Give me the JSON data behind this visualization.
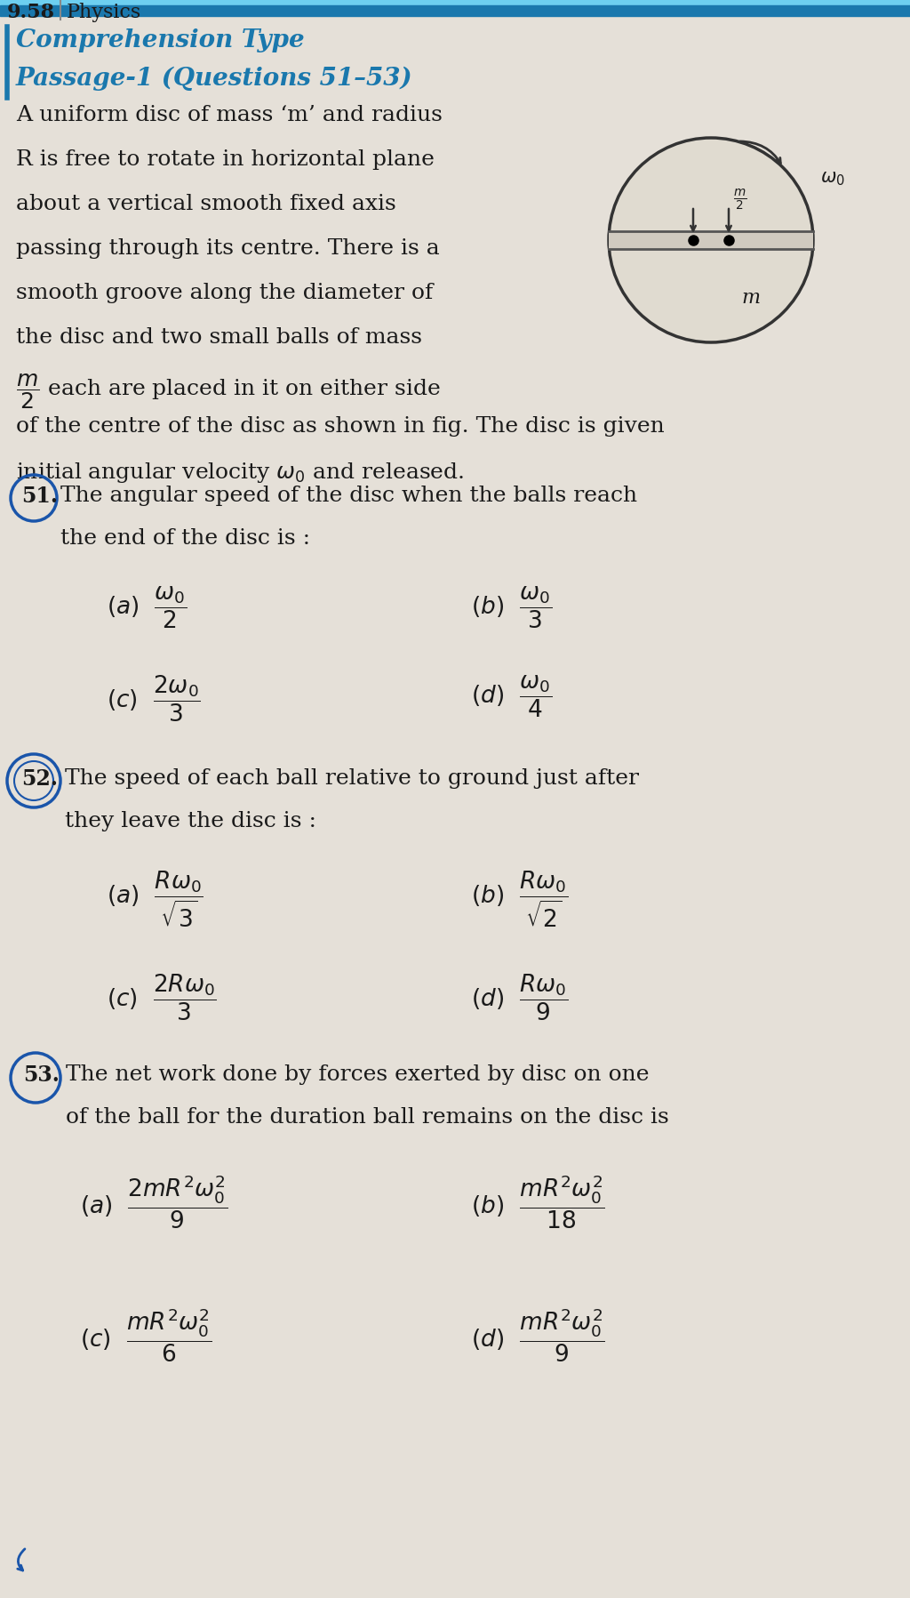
{
  "bg_color": "#e5e0d8",
  "blue_color": "#1a78ad",
  "text_color": "#1a1a1a",
  "circle_color": "#1a55aa",
  "header_line1_color": "#4db8e8",
  "header_line2_color": "#1a78ad",
  "fig_width": 10.24,
  "fig_height": 17.97,
  "dpi": 100,
  "passage_lines": [
    "A uniform disc of mass ‘m’ and radius",
    "R is free to rotate in horizontal plane",
    "about a vertical smooth fixed axis",
    "passing through its centre. There is a",
    "smooth groove along the diameter of",
    "the disc and two small balls of mass",
    "$\\dfrac{m}{2}$ each are placed in it on either side",
    "of the centre of the disc as shown in fig. The disc is given",
    "initial angular velocity $\\omega_0$ and released."
  ],
  "q51_line1": "The angular speed of the disc when the balls reach",
  "q51_line2": "the end of the disc is :",
  "q52_line1": "The speed of each ball relative to ground just after",
  "q52_line2": "they leave the disc is :",
  "q53_line1": "The net work done by forces exerted by disc on one",
  "q53_line2": "of the ball for the duration ball remains on the disc is"
}
